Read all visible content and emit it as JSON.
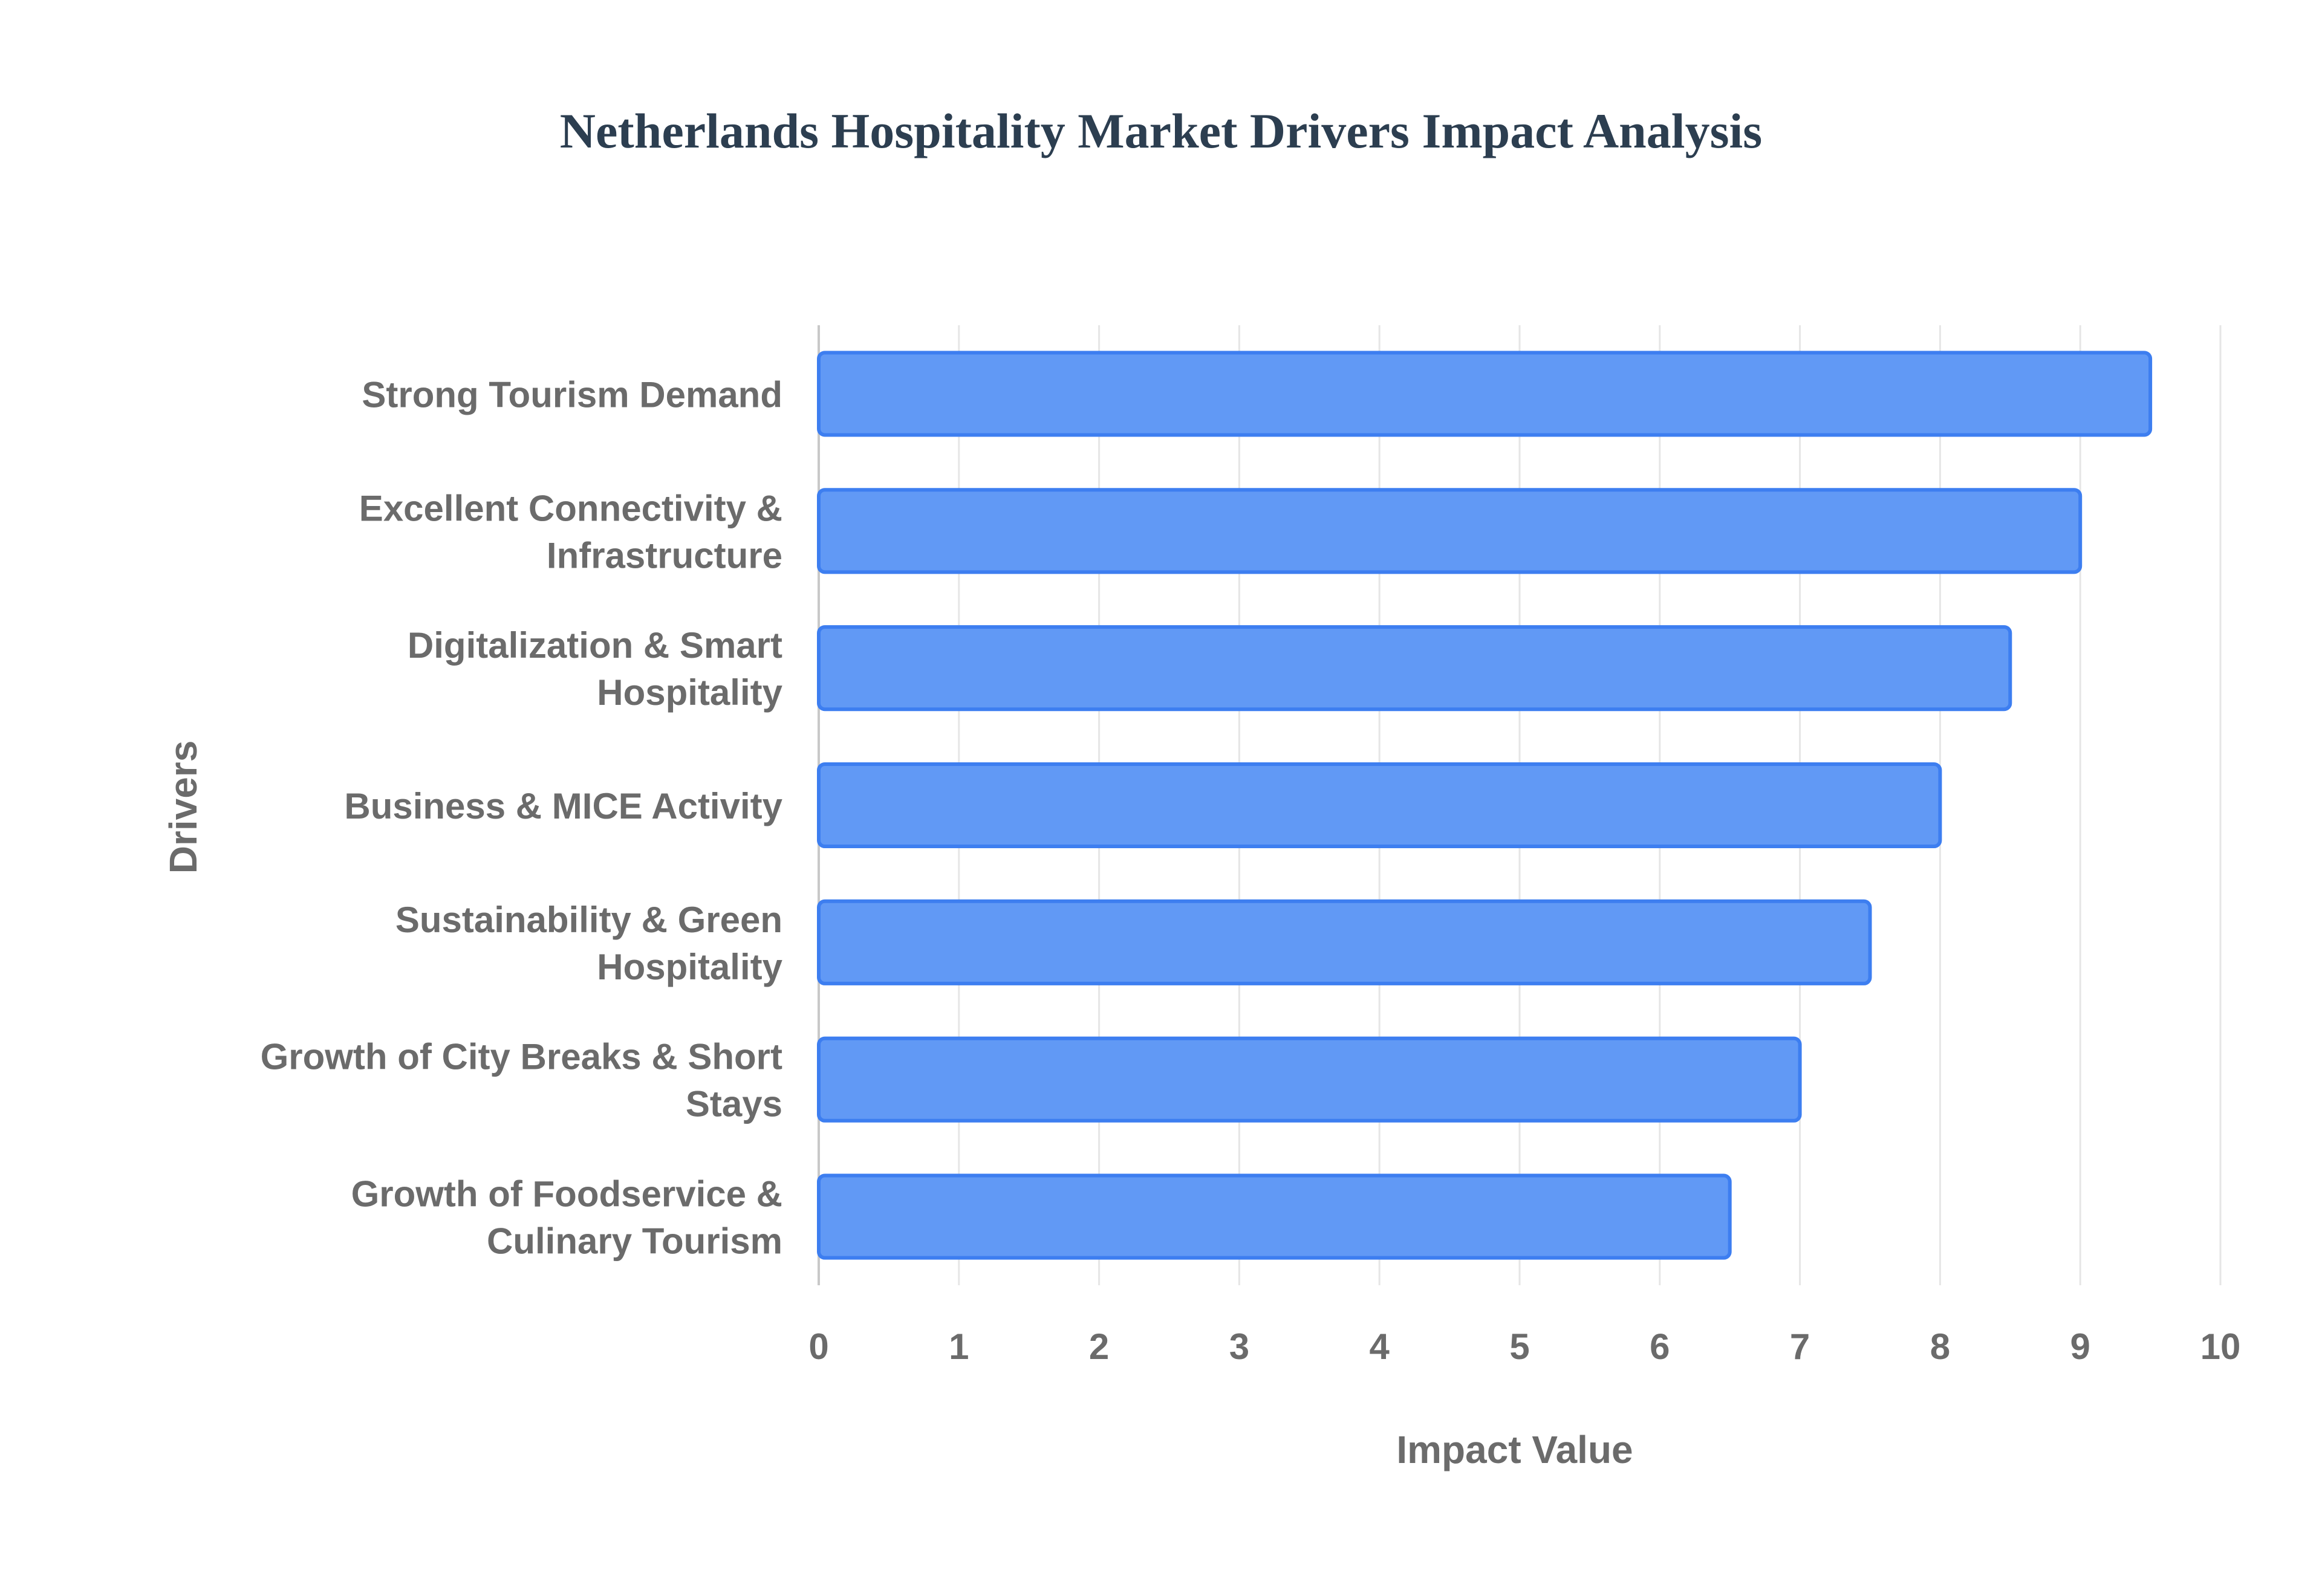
{
  "chart_data": {
    "type": "bar",
    "orientation": "horizontal",
    "title": "Netherlands Hospitality Market Drivers Impact Analysis",
    "xlabel": "Impact Value",
    "ylabel": "Drivers",
    "xlim": [
      0,
      10
    ],
    "xticks": [
      "0",
      "1",
      "2",
      "3",
      "4",
      "5",
      "6",
      "7",
      "8",
      "9",
      "10"
    ],
    "grid": true,
    "bar_color": "#6199f5",
    "bar_border_color": "#3d7ef0",
    "categories": [
      [
        "Strong Tourism Demand"
      ],
      [
        "Excellent Connectivity &",
        "Infrastructure"
      ],
      [
        "Digitalization & Smart",
        "Hospitality"
      ],
      [
        "Business & MICE Activity"
      ],
      [
        "Sustainability & Green",
        "Hospitality"
      ],
      [
        "Growth of City Breaks & Short",
        "Stays"
      ],
      [
        "Growth of Foodservice &",
        "Culinary Tourism"
      ]
    ],
    "values": [
      9.5,
      9.0,
      8.5,
      8.0,
      7.5,
      7.0,
      6.5
    ]
  }
}
